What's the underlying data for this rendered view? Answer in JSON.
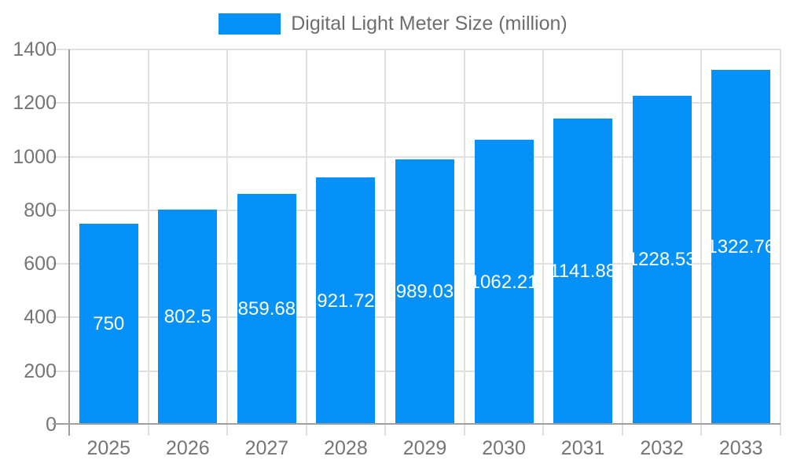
{
  "legend": {
    "label": "Digital Light Meter Size (million)"
  },
  "chart_data": {
    "type": "bar",
    "title": "Digital Light Meter Size (million)",
    "categories": [
      "2025",
      "2026",
      "2027",
      "2028",
      "2029",
      "2030",
      "2031",
      "2032",
      "2033"
    ],
    "values": [
      750,
      802.5,
      859.68,
      921.72,
      989.03,
      1062.21,
      1141.88,
      1228.53,
      1322.76
    ],
    "value_labels": [
      "750",
      "802.5",
      "859.68",
      "921.72",
      "989.03",
      "1062.21",
      "1141.88",
      "1228.53",
      "1322.76"
    ],
    "series": [
      {
        "name": "Digital Light Meter Size (million)",
        "values": [
          750,
          802.5,
          859.68,
          921.72,
          989.03,
          1062.21,
          1141.88,
          1228.53,
          1322.76
        ]
      }
    ],
    "xlabel": "",
    "ylabel": "",
    "ylim": [
      0,
      1400
    ],
    "ytick_step": 200,
    "ytick_labels": [
      "0",
      "200",
      "400",
      "600",
      "800",
      "1000",
      "1200",
      "1400"
    ],
    "grid": true,
    "legend_position": "top-center",
    "value_label_position": "center-inside-bar",
    "colors": {
      "bar": "#0591f7",
      "grid": "#e0e0e0",
      "axis": "#9e9e9e",
      "tick_text": "#757575",
      "legend_text": "#6e6e6e",
      "value_text": "#ffffff",
      "background": "#ffffff"
    }
  }
}
